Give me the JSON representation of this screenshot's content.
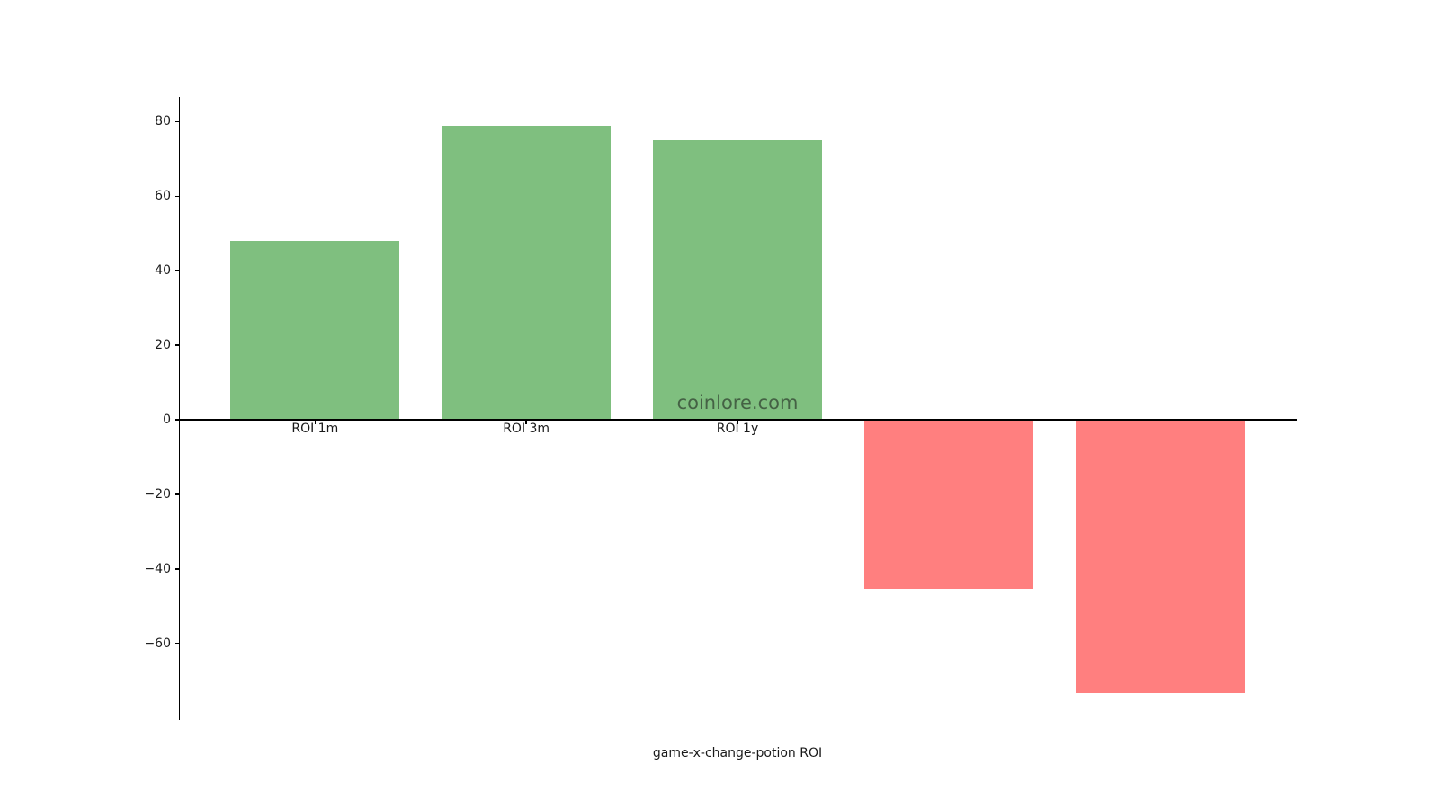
{
  "figure": {
    "watermark": "coinlore.com",
    "xlabel": "game-x-change-potion ROI"
  },
  "chart_data": {
    "type": "bar",
    "categories": [
      "ROI 1m",
      "ROI 3m",
      "ROI 1y",
      "",
      ""
    ],
    "values": [
      48,
      79,
      75,
      -45,
      -73
    ],
    "title": "",
    "xlabel": "game-x-change-potion ROI",
    "ylabel": "",
    "ylim": [
      -80.6,
      86.6
    ],
    "yticks": [
      80,
      60,
      40,
      20,
      0,
      -20,
      -40,
      -60
    ],
    "ytick_labels": [
      "80",
      "60",
      "40",
      "20",
      "0",
      "−20",
      "−40",
      "−60"
    ],
    "grid": false,
    "legend_position": "none",
    "watermark": "coinlore.com",
    "colors": {
      "positive_bar": "#7fbf7f",
      "negative_bar": "#ff7f7f",
      "axis": "#000000",
      "tick_text": "#1a1a1a"
    }
  }
}
